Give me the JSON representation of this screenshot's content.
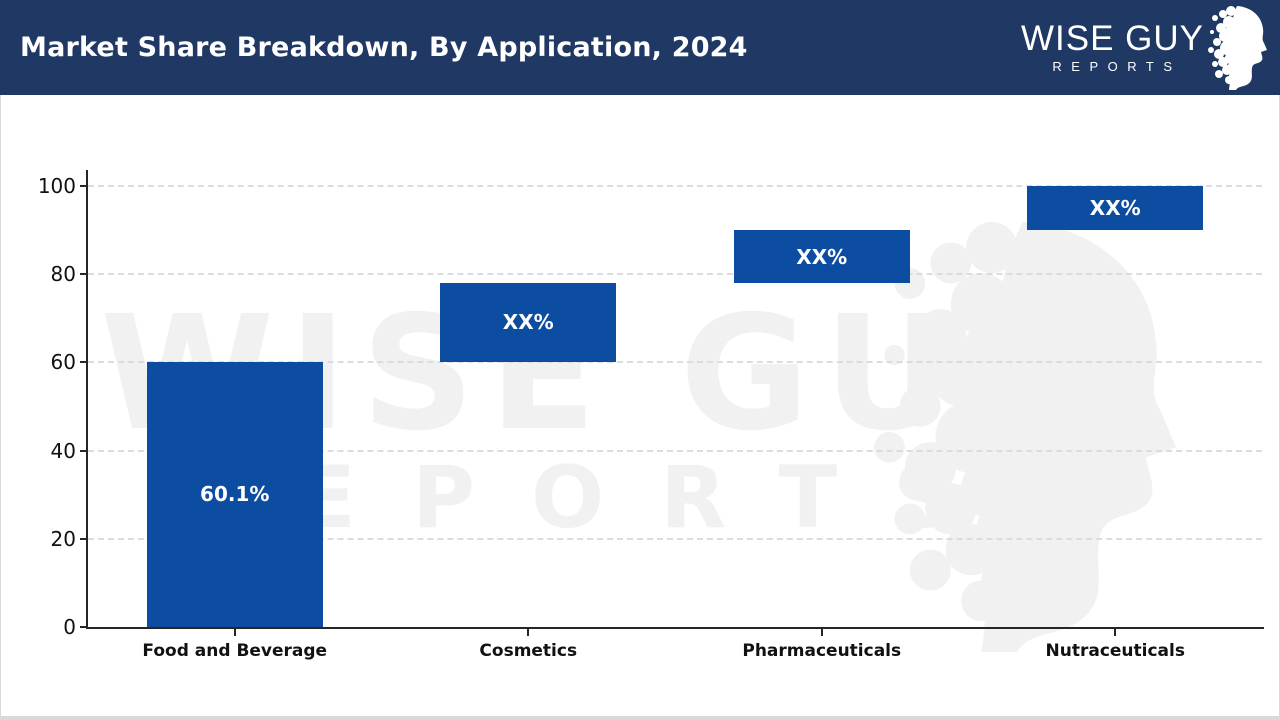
{
  "header": {
    "title": "Market Share Breakdown, By Application, 2024",
    "logo": {
      "line1": "WISE GUY",
      "line2": "REPORTS",
      "face_icon": "dotted-head-profile"
    }
  },
  "watermark": {
    "line1": "WISE GUY",
    "line2": "REPORTS"
  },
  "chart_data": {
    "type": "bar",
    "variant": "waterfall",
    "title": "Market Share Breakdown, By Application, 2024",
    "categories": [
      "Food and Beverage",
      "Cosmetics",
      "Pharmaceuticals",
      "Nutraceuticals"
    ],
    "segments": [
      {
        "category": "Food and Beverage",
        "start": 0,
        "end": 60.1,
        "label": "60.1%"
      },
      {
        "category": "Cosmetics",
        "start": 60.1,
        "end": 78,
        "label": "XX%"
      },
      {
        "category": "Pharmaceuticals",
        "start": 78,
        "end": 90,
        "label": "XX%"
      },
      {
        "category": "Nutraceuticals",
        "start": 90,
        "end": 100,
        "label": "XX%"
      }
    ],
    "xlabel": "",
    "ylabel": "",
    "ylim": [
      0,
      100
    ],
    "yticks": [
      0,
      20,
      40,
      60,
      80,
      100
    ],
    "grid": {
      "horizontal": true,
      "style": "dashed"
    },
    "legend": "none"
  },
  "colors": {
    "header_bg": "#1f3864",
    "bar": "#0d4da1",
    "grid": "#dcdcdc",
    "axis": "#262626",
    "text": "#111111",
    "bar_label": "#ffffff",
    "watermark": "#f1f1f1",
    "edge": "#d9d9d9"
  }
}
